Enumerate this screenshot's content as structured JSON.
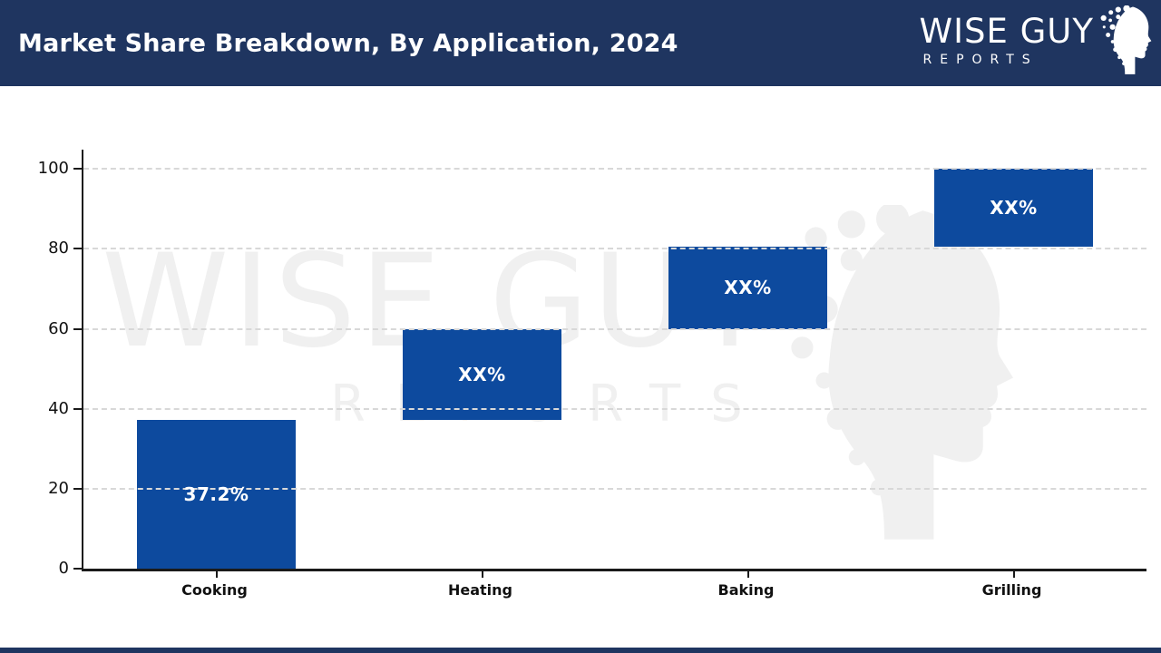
{
  "header": {
    "title": "Market Share Breakdown, By Application, 2024",
    "logo": {
      "name": "WISE GUY",
      "sub": "REPORTS"
    }
  },
  "watermark": {
    "line1": "WISE GUY",
    "line2": "REPORTS"
  },
  "colors": {
    "header_bg": "#1f3560",
    "footer_bg": "#1f3560",
    "bar": "#0d4a9e",
    "bar_label": "#ffffff",
    "grid": "#d8d8d8",
    "axis": "#1a1a1a",
    "wm": "#f0f0f0"
  },
  "chart_data": {
    "type": "bar",
    "subtype": "waterfall",
    "title": "Market Share Breakdown, By Application, 2024",
    "categories": [
      "Cooking",
      "Heating",
      "Baking",
      "Grilling"
    ],
    "segments": [
      {
        "category": "Cooking",
        "start": 0,
        "end": 37.2,
        "label": "37.2%"
      },
      {
        "category": "Heating",
        "start": 37.2,
        "end": 60,
        "label": "XX%"
      },
      {
        "category": "Baking",
        "start": 60,
        "end": 80.5,
        "label": "XX%"
      },
      {
        "category": "Grilling",
        "start": 80.5,
        "end": 100,
        "label": "XX%"
      }
    ],
    "values": [
      37.2,
      22.8,
      20.5,
      19.5
    ],
    "bar_labels": [
      "37.2%",
      "XX%",
      "XX%",
      "XX%"
    ],
    "yticks": [
      0,
      20,
      40,
      60,
      80,
      100
    ],
    "ylim": [
      0,
      104.8
    ],
    "xlabel": "",
    "ylabel": "",
    "grid": "horizontal-dashed-over-bars",
    "legend": null
  }
}
